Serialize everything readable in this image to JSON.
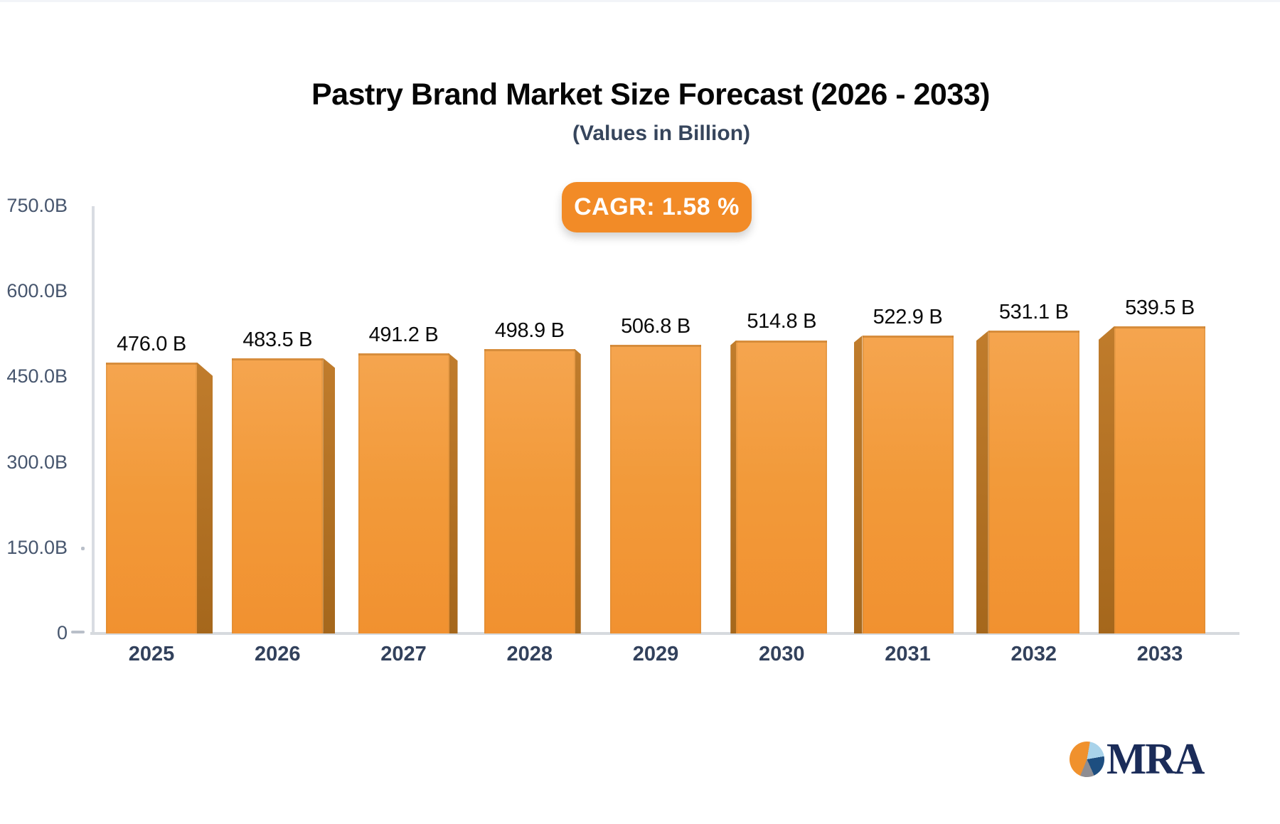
{
  "title": "Pastry Brand Market Size Forecast (2026 - 2033)",
  "subtitle": "(Values in Billion)",
  "cagr_label": "CAGR: 1.58 %",
  "logo": {
    "text": "MRA"
  },
  "chart_data": {
    "type": "bar",
    "title": "Pastry Brand Market Size Forecast (2026 - 2033)",
    "subtitle": "(Values in Billion)",
    "cagr": "1.58 %",
    "categories": [
      "2025",
      "2026",
      "2027",
      "2028",
      "2029",
      "2030",
      "2031",
      "2032",
      "2033"
    ],
    "values": [
      476.0,
      483.5,
      491.2,
      498.9,
      506.8,
      514.8,
      522.9,
      531.1,
      539.5
    ],
    "bar_labels": [
      "476.0 B",
      "483.5 B",
      "491.2 B",
      "498.9 B",
      "506.8 B",
      "514.8 B",
      "522.9 B",
      "531.1 B",
      "539.5 B"
    ],
    "xlabel": "",
    "ylabel": "",
    "ylim": [
      0,
      750
    ],
    "grid": false,
    "legend": "none",
    "y_ticks": [
      {
        "label": "750.0B",
        "value": 750
      },
      {
        "label": "600.0B",
        "value": 600
      },
      {
        "label": "450.0B",
        "value": 450
      },
      {
        "label": "300.0B",
        "value": 300
      },
      {
        "label": "150.0B",
        "value": 150
      },
      {
        "label": "0",
        "value": 0
      }
    ],
    "bar_color": "#f29a38",
    "bar_side_color": "#ad6d1f",
    "accent_color": "#f28b27",
    "axis_color": "#d9dce2",
    "label_color": "#32415c"
  }
}
